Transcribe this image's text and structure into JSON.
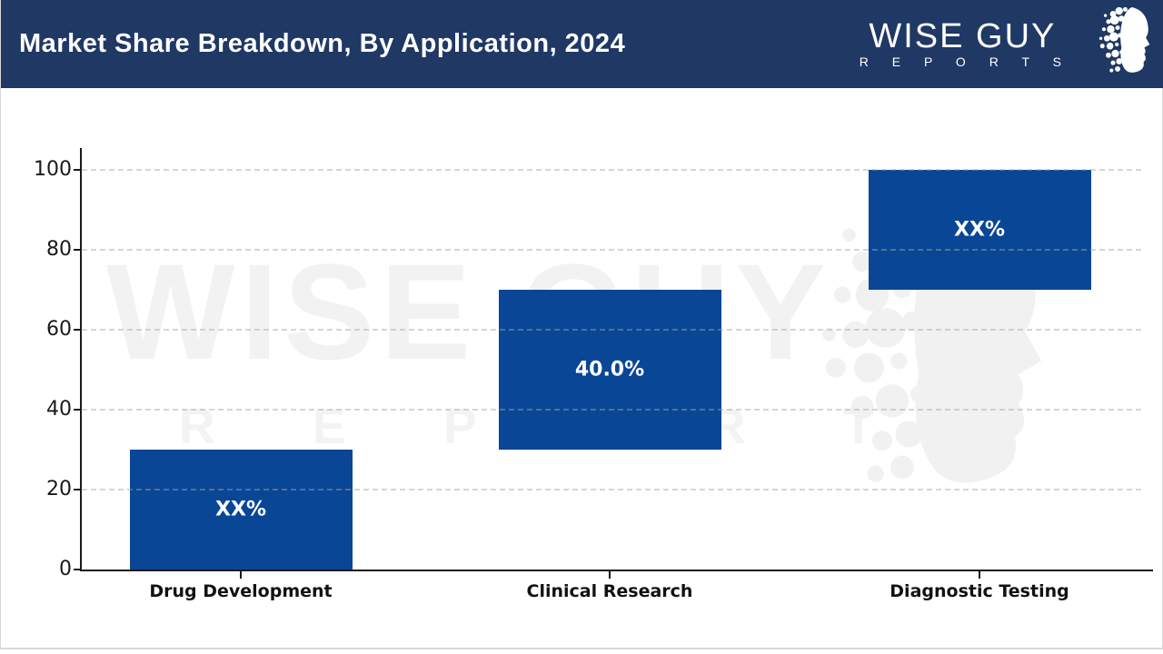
{
  "header": {
    "title": "Market Share Breakdown, By Application, 2024",
    "bg_color": "#1F3864",
    "logo": {
      "line1": "WISE GUY",
      "line2": "REPORTS"
    }
  },
  "watermark": {
    "line1": "WISE GUY",
    "line2": "REPORTS"
  },
  "chart_data": {
    "type": "bar",
    "subtype": "waterfall",
    "title": "Market Share Breakdown, By Application, 2024",
    "categories": [
      "Drug Development",
      "Clinical Research",
      "Diagnostic Testing"
    ],
    "series": [
      {
        "name": "Market Share (%)",
        "segments": [
          {
            "category": "Drug Development",
            "start": 0,
            "end": 30,
            "label": "XX%"
          },
          {
            "category": "Clinical Research",
            "start": 30,
            "end": 70,
            "label": "40.0%"
          },
          {
            "category": "Diagnostic Testing",
            "start": 70,
            "end": 100,
            "label": "XX%"
          }
        ]
      }
    ],
    "bar_labels": [
      "XX%",
      "40.0%",
      "XX%"
    ],
    "y_ticks": [
      0,
      20,
      40,
      60,
      80,
      100
    ],
    "ylim": [
      0,
      105
    ],
    "xlabel": "",
    "ylabel": "",
    "grid": "dashed-horizontal",
    "legend": "none",
    "bar_color": "#0A4696",
    "grid_color": "#d9d9d9",
    "axis_color": "#1a1a1a"
  }
}
